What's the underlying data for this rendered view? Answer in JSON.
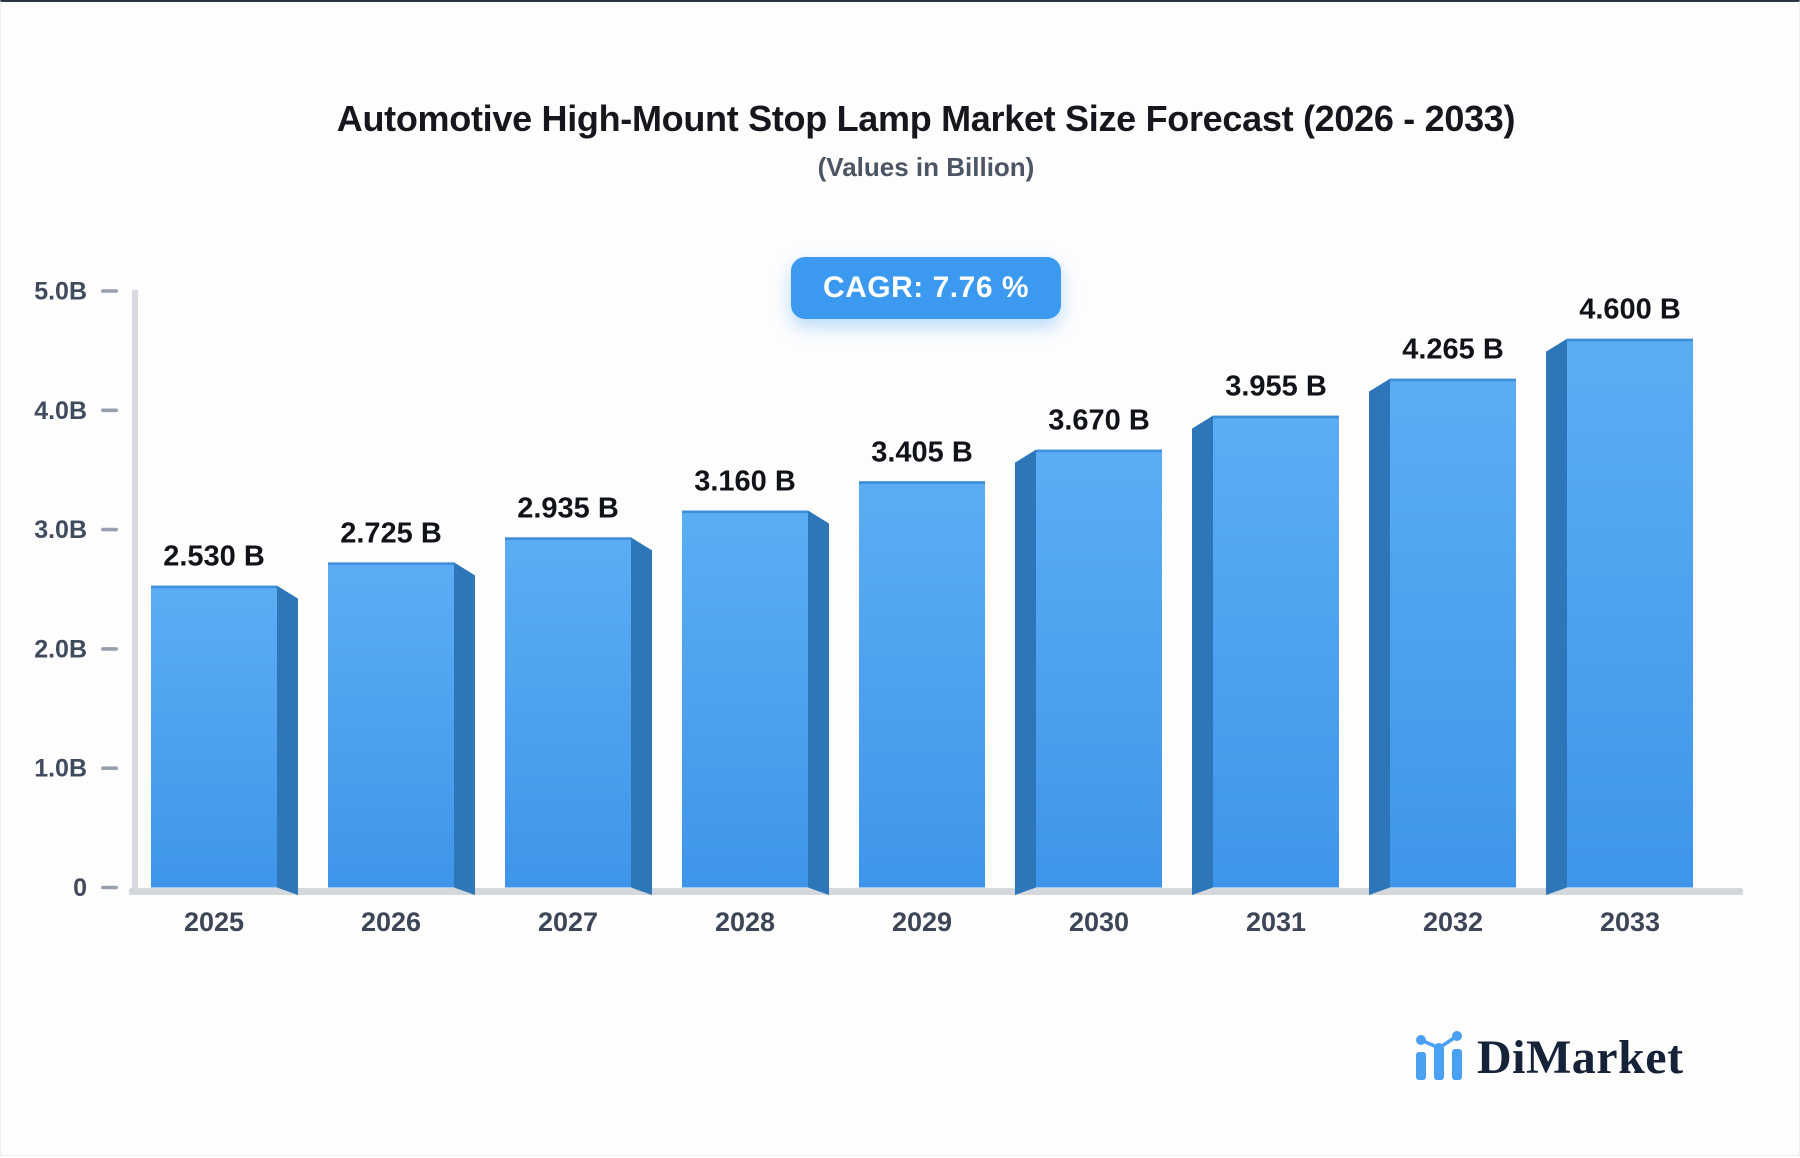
{
  "title": "Automotive High-Mount Stop Lamp Market Size Forecast (2026 - 2033)",
  "subtitle": "(Values in Billion)",
  "badge": {
    "label": "CAGR: 7.76 %"
  },
  "brand": {
    "name": "DiMarket",
    "icon": "mini-bar-chart-logo"
  },
  "colors": {
    "accent_blue": "#3b9af0",
    "bar_face_top": "#5badf3",
    "bar_face_bottom": "#3f95ea",
    "bar_side": "#2d76b7",
    "bar_top_edge": "#3f8ed9",
    "axis_line": "#d7dade",
    "baseline": "#d4d8dd",
    "tick_dash": "#97a0ae",
    "ytick_label": "#414b5e",
    "year_label": "#3d4657",
    "value_label": "#101318",
    "badge_bg": "#3b9af0",
    "badge_text": "#ffffff",
    "logo_text": "#152238",
    "logo_icon": "#4aa0f2"
  },
  "chart_data": {
    "type": "bar",
    "title": "Automotive High-Mount Stop Lamp Market Size Forecast (2026 - 2033)",
    "subtitle": "(Values in Billion)",
    "categories": [
      "2025",
      "2026",
      "2027",
      "2028",
      "2029",
      "2030",
      "2031",
      "2032",
      "2033"
    ],
    "values": [
      2.53,
      2.725,
      2.935,
      3.16,
      3.405,
      3.67,
      3.955,
      4.265,
      4.6
    ],
    "value_labels": [
      "2.530 B",
      "2.725 B",
      "2.935 B",
      "3.160 B",
      "3.405 B",
      "3.670 B",
      "3.955 B",
      "4.265 B",
      "4.600 B"
    ],
    "ylim": [
      0,
      5
    ],
    "yticks": [
      0,
      1,
      2,
      3,
      4,
      5
    ],
    "ytick_labels": [
      "0",
      "1.0B",
      "2.0B",
      "3.0B",
      "4.0B",
      "5.0B"
    ],
    "grid": false,
    "legend": false,
    "annotation": "CAGR: 7.76 %",
    "style": "3d-bars-perspective-toward-center"
  }
}
